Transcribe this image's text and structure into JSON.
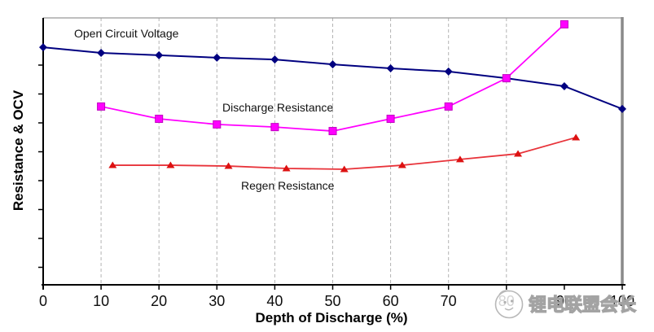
{
  "chart_data": {
    "type": "line",
    "title": "",
    "xlabel": "Depth of Discharge (%)",
    "ylabel": "Resistance & OCV",
    "x_axis": {
      "min": 0,
      "max": 100,
      "tick_step": 10,
      "tick_labels": [
        "0",
        "10",
        "20",
        "30",
        "40",
        "50",
        "60",
        "70",
        "80",
        "90",
        "100"
      ]
    },
    "y_axis": {
      "tick_labels": [],
      "tick_count": 8,
      "note": "y axis has unlabeled tick marks; series y values are estimated fractions of plot height (0 = x-axis, 1 = top border)"
    },
    "grid": {
      "vertical_dashed_at": [
        10,
        20,
        30,
        40,
        50,
        60,
        70,
        80
      ]
    },
    "legend": "none (series labeled by in-plot text annotations)",
    "series": [
      {
        "name": "Open Circuit Voltage",
        "marker": "diamond",
        "color": "#000080",
        "marker_color": "#000080",
        "marker_edge": "none",
        "line_width": 2,
        "x": [
          0,
          10,
          20,
          30,
          40,
          50,
          60,
          70,
          80,
          90,
          100
        ],
        "y": [
          0.89,
          0.869,
          0.86,
          0.851,
          0.844,
          0.826,
          0.811,
          0.799,
          0.774,
          0.744,
          0.659
        ]
      },
      {
        "name": "Discharge Resistance",
        "marker": "square",
        "color": "#ff00ff",
        "marker_color": "#ff00ff",
        "marker_edge": "#c000c0",
        "line_width": 1.8,
        "x": [
          10,
          20,
          30,
          40,
          50,
          60,
          70,
          80,
          90
        ],
        "y": [
          0.668,
          0.622,
          0.601,
          0.591,
          0.576,
          0.622,
          0.668,
          0.774,
          0.976
        ]
      },
      {
        "name": "Regen Resistance",
        "marker": "triangle",
        "color": "#e8333a",
        "marker_color": "#dd1111",
        "marker_edge": "none",
        "line_width": 1.8,
        "x": [
          12,
          22,
          32,
          42,
          52,
          62,
          72,
          82,
          92
        ],
        "y": [
          0.448,
          0.448,
          0.445,
          0.436,
          0.433,
          0.448,
          0.47,
          0.491,
          0.552
        ]
      }
    ],
    "style": {
      "grid_color": "#b3b3b3",
      "axis_color": "#000000",
      "top_border_color": "#999999",
      "right_border_color": "#8a8a8a",
      "background": "#ffffff"
    }
  },
  "watermark": {
    "text": "锂电联盟会长",
    "logo": "circular-mascot-face",
    "color": "#a8a8a8"
  }
}
